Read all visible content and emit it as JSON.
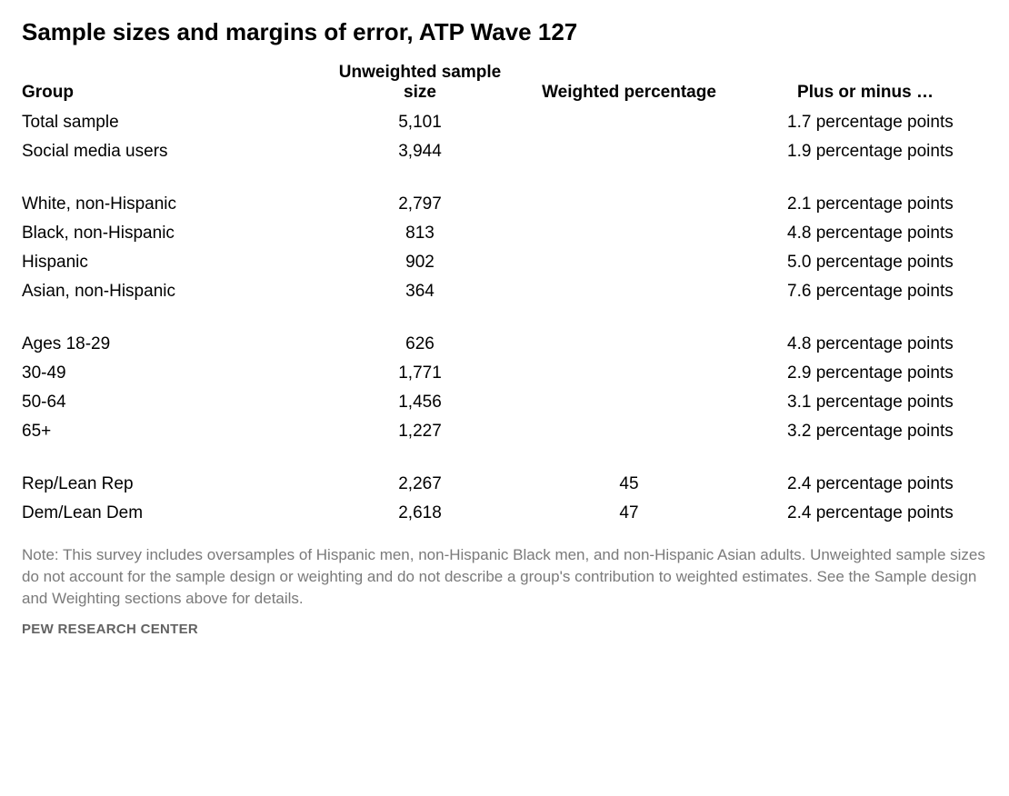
{
  "title": "Sample sizes and margins of error, ATP Wave 127",
  "columns": {
    "group": "Group",
    "size": "Unweighted sample size",
    "wpct": "Weighted percentage",
    "moe": "Plus or minus …"
  },
  "groups": [
    [
      {
        "group": "Total sample",
        "size": "5,101",
        "wpct": "",
        "moe": "1.7 percentage points"
      },
      {
        "group": "Social media users",
        "size": "3,944",
        "wpct": "",
        "moe": "1.9 percentage points"
      }
    ],
    [
      {
        "group": "White, non-Hispanic",
        "size": "2,797",
        "wpct": "",
        "moe": "2.1 percentage points"
      },
      {
        "group": "Black, non-Hispanic",
        "size": "813",
        "wpct": "",
        "moe": "4.8 percentage points"
      },
      {
        "group": "Hispanic",
        "size": "902",
        "wpct": "",
        "moe": "5.0 percentage points"
      },
      {
        "group": "Asian, non-Hispanic",
        "size": "364",
        "wpct": "",
        "moe": "7.6 percentage points"
      }
    ],
    [
      {
        "group": "Ages 18-29",
        "size": "626",
        "wpct": "",
        "moe": "4.8 percentage points"
      },
      {
        "group": "30-49",
        "size": "1,771",
        "wpct": "",
        "moe": "2.9 percentage points"
      },
      {
        "group": "50-64",
        "size": "1,456",
        "wpct": "",
        "moe": "3.1 percentage points"
      },
      {
        "group": "65+",
        "size": "1,227",
        "wpct": "",
        "moe": "3.2 percentage points"
      }
    ],
    [
      {
        "group": "Rep/Lean Rep",
        "size": "2,267",
        "wpct": "45",
        "moe": "2.4 percentage points"
      },
      {
        "group": "Dem/Lean Dem",
        "size": "2,618",
        "wpct": "47",
        "moe": "2.4 percentage points"
      }
    ]
  ],
  "note": "Note: This survey includes oversamples of Hispanic men, non-Hispanic Black men, and non-Hispanic Asian adults. Unweighted sample sizes do not account for the sample design or weighting and do not describe a group's contribution to weighted estimates. See the Sample design and Weighting sections above for details.",
  "source": "PEW RESEARCH CENTER",
  "style": {
    "text_color": "#000000",
    "note_color": "#7a7a7a",
    "source_color": "#636363",
    "background_color": "#ffffff",
    "title_fontsize": 26,
    "body_fontsize": 19,
    "note_fontsize": 17,
    "source_fontsize": 15,
    "font_family": "Arial"
  }
}
